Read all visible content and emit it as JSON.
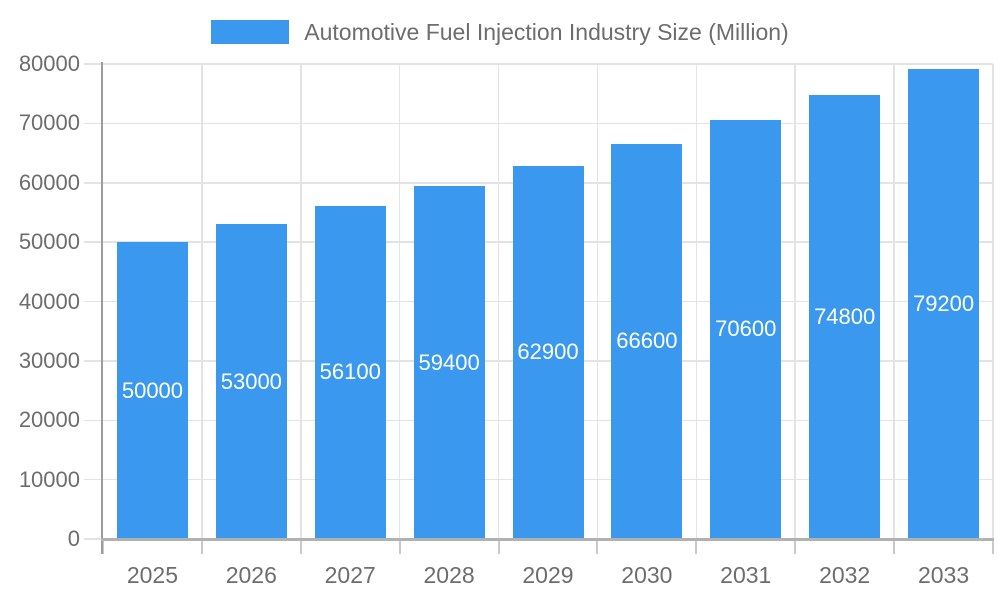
{
  "chart_data": {
    "type": "bar",
    "title": "Automotive Fuel Injection Industry Size (Million)",
    "legend_position": "top",
    "categories": [
      "2025",
      "2026",
      "2027",
      "2028",
      "2029",
      "2030",
      "2031",
      "2032",
      "2033"
    ],
    "values": [
      50000,
      53000,
      56100,
      59400,
      62900,
      66600,
      70600,
      74800,
      79200
    ],
    "bar_value_labels": [
      "50000",
      "53000",
      "56100",
      "59400",
      "62900",
      "66600",
      "70600",
      "74800",
      "79200"
    ],
    "xlabel": "",
    "ylabel": "",
    "ylim": [
      0,
      80000
    ],
    "ytick_step": 10000,
    "ytick_labels": [
      "0",
      "10000",
      "20000",
      "30000",
      "40000",
      "50000",
      "60000",
      "70000",
      "80000"
    ],
    "grid": true,
    "colors": {
      "bar": "#3a99ee",
      "grid": "#e3e3e3",
      "tick": "#c9c9c9",
      "axis_y": "#9c9c9c",
      "axis_x": "#b1b1b1",
      "text": "#6d6d6d",
      "bar_label_text": "#ffffff",
      "background": "#ffffff"
    }
  }
}
